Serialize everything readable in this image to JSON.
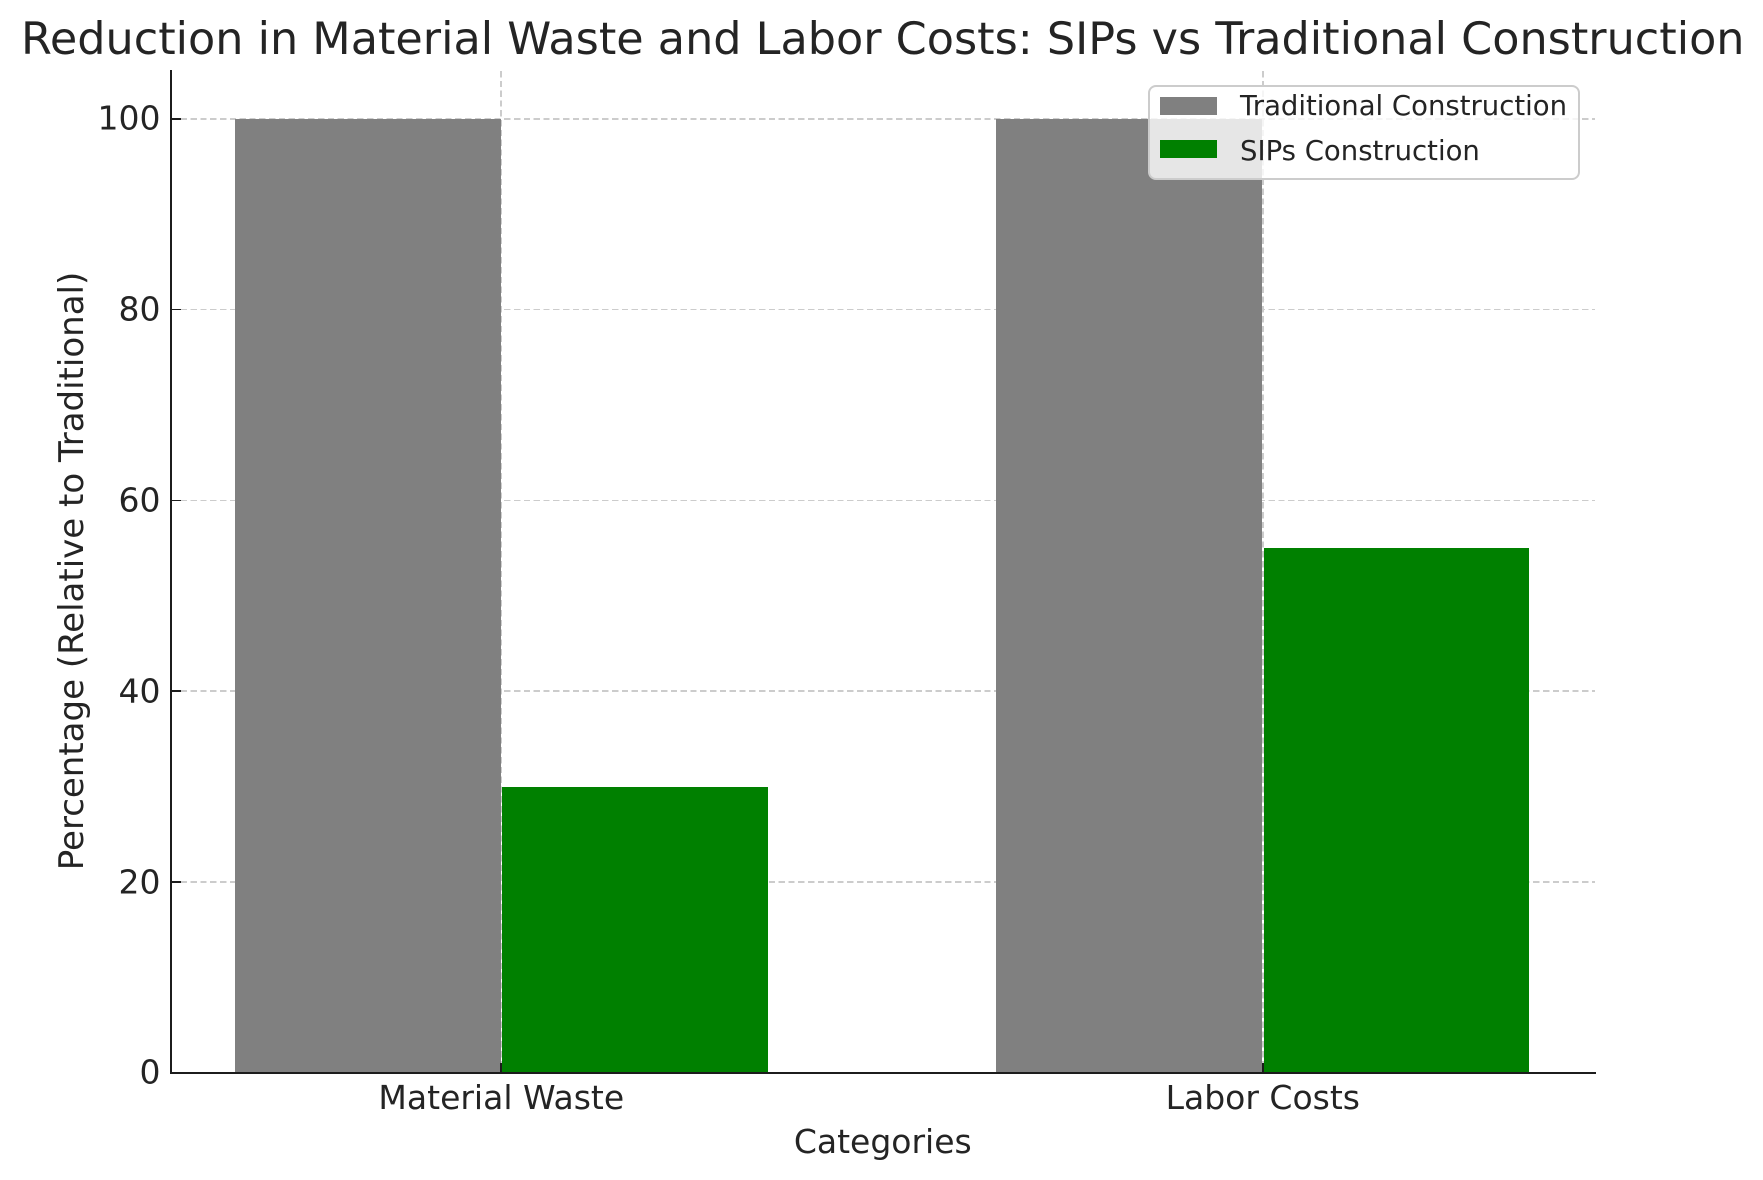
{
  "chart_data": {
    "type": "bar",
    "title": "Reduction in Material Waste and Labor Costs: SIPs vs Traditional Construction",
    "xlabel": "Categories",
    "ylabel": "Percentage (Relative to Traditional)",
    "categories": [
      "Material Waste",
      "Labor Costs"
    ],
    "series": [
      {
        "name": "Traditional Construction",
        "color": "#808080",
        "values": [
          100,
          100
        ]
      },
      {
        "name": "SIPs Construction",
        "color": "#008000",
        "values": [
          30,
          55
        ]
      }
    ],
    "ylim": [
      0,
      105
    ],
    "yticks": [
      0,
      20,
      40,
      60,
      80,
      100
    ],
    "bar_width_fraction": 0.35,
    "grid": {
      "visible": true,
      "axis": "both",
      "linestyle": "dashed",
      "color": "#cccccc"
    },
    "legend": {
      "location": "upper right",
      "background": "#ffffff",
      "border_color": "#cccccc"
    },
    "colors": {
      "background": "#ffffff",
      "text": "#242424",
      "spine": "#1c1c1c"
    }
  }
}
